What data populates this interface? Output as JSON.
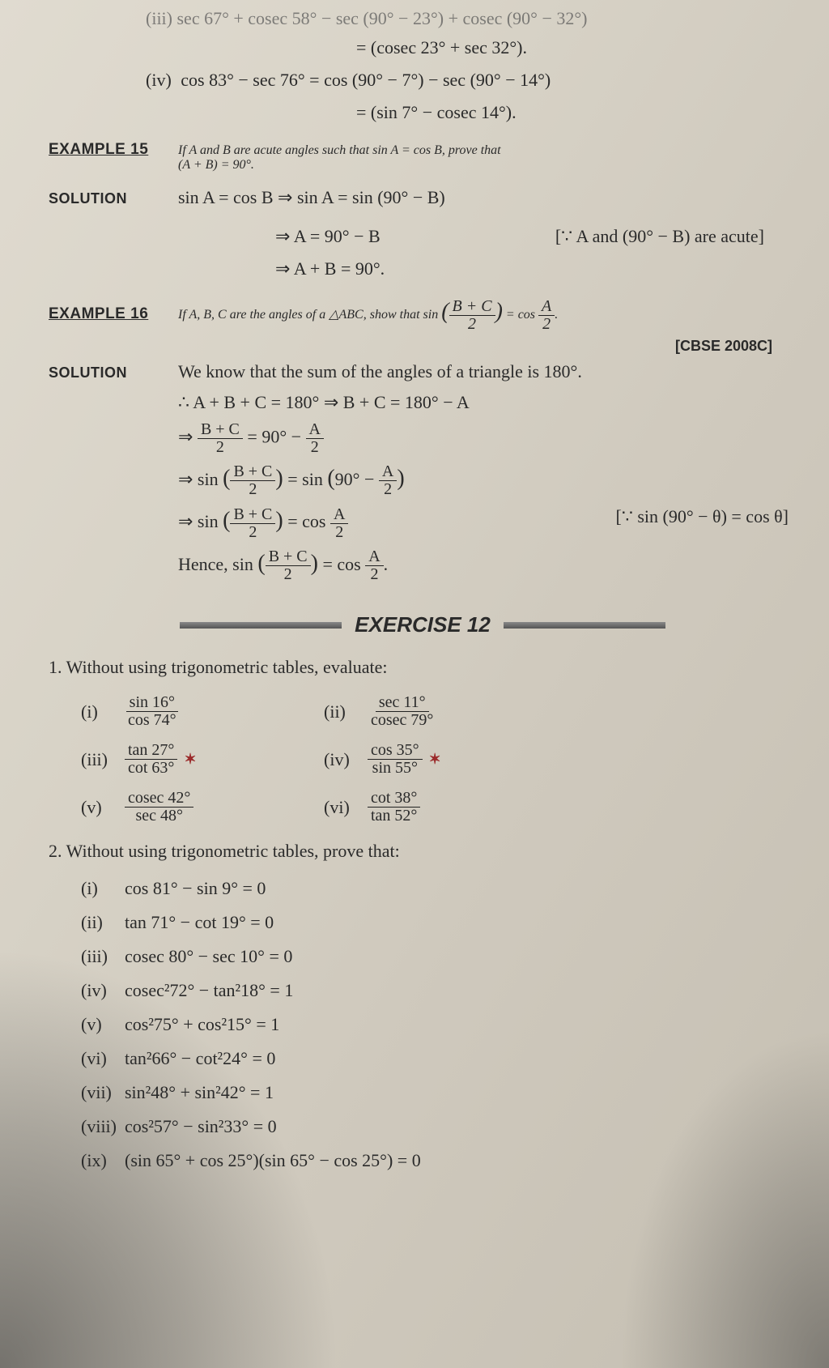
{
  "cut_top": "(iii) sec 67° + cosec 58° − sec (90° − 23°) + cosec (90° − 32°)",
  "top": {
    "line1": "= (cosec 23° + sec 32°).",
    "iv_label": "(iv)",
    "iv_lhs": "cos 83° − sec 76° = cos (90° − 7°) − sec (90° − 14°)",
    "iv_result": "= (sin 7° − cosec 14°)."
  },
  "ex15": {
    "label": "EXAMPLE 15",
    "text1": "If A and B are acute angles such that sin A = cos B, prove that",
    "text2": "(A + B) = 90°.",
    "sol_label": "SOLUTION",
    "sol1": "sin A = cos B ⇒ sin A = sin (90° − B)",
    "sol2": "⇒ A = 90° − B",
    "sol2_note": "[∵  A and (90° − B) are acute]",
    "sol3": "⇒ A + B = 90°."
  },
  "ex16": {
    "label": "EXAMPLE 16",
    "text": "If A, B, C are the angles of a △ABC, show that sin",
    "frac1_num": "B + C",
    "frac1_den": "2",
    "mid": "= cos",
    "frac2_num": "A",
    "frac2_den": "2",
    "end": ".",
    "cbse": "[CBSE 2008C]",
    "sol_label": "SOLUTION",
    "sol_intro": "We know that the sum of the angles of a triangle is 180°.",
    "s1": "∴    A + B + C = 180° ⇒ B + C = 180° − A",
    "s2_pre": "⇒   ",
    "s2_frac1_num": "B + C",
    "s2_frac1_den": "2",
    "s2_mid": " = 90° − ",
    "s2_frac2_num": "A",
    "s2_frac2_den": "2",
    "s3_pre": "⇒   sin",
    "s3_mid": "= sin",
    "s3_arg2a": "90° − ",
    "s4_pre": "⇒   sin",
    "s4_mid": "= cos",
    "s4_note": "[∵  sin (90° − θ) = cos θ]",
    "s5_pre": "Hence, sin",
    "s5_mid": "= cos",
    "s5_end": "."
  },
  "exercise_title": "EXERCISE 12",
  "q1_text": "1. Without using trigonometric tables, evaluate:",
  "q1_items": [
    {
      "roman": "(i)",
      "num": "sin 16°",
      "den": "cos 74°"
    },
    {
      "roman": "(ii)",
      "num": "sec 11°",
      "den": "cosec 79°"
    },
    {
      "roman": "(iii)",
      "num": "tan 27°",
      "den": "cot 63°",
      "mark": "✶"
    },
    {
      "roman": "(iv)",
      "num": "cos 35°",
      "den": "sin 55°",
      "mark": "✶"
    },
    {
      "roman": "(v)",
      "num": "cosec 42°",
      "den": "sec 48°"
    },
    {
      "roman": "(vi)",
      "num": "cot 38°",
      "den": "tan 52°"
    }
  ],
  "q2_text": "2. Without using trigonometric tables, prove that:",
  "q2_items": [
    {
      "roman": "(i)",
      "text": "cos 81° − sin 9° = 0"
    },
    {
      "roman": "(ii)",
      "text": "tan 71° − cot 19° = 0"
    },
    {
      "roman": "(iii)",
      "text": "cosec 80° − sec 10° = 0"
    },
    {
      "roman": "(iv)",
      "text": "cosec²72° − tan²18° = 1"
    },
    {
      "roman": "(v)",
      "text": "cos²75° + cos²15° = 1"
    },
    {
      "roman": "(vi)",
      "text": "tan²66° − cot²24° = 0"
    },
    {
      "roman": "(vii)",
      "text": "sin²48° + sin²42° = 1"
    },
    {
      "roman": "(viii)",
      "text": "cos²57° − sin²33° = 0"
    },
    {
      "roman": "(ix)",
      "text": "(sin 65° + cos 25°)(sin 65° − cos 25°) = 0"
    }
  ]
}
